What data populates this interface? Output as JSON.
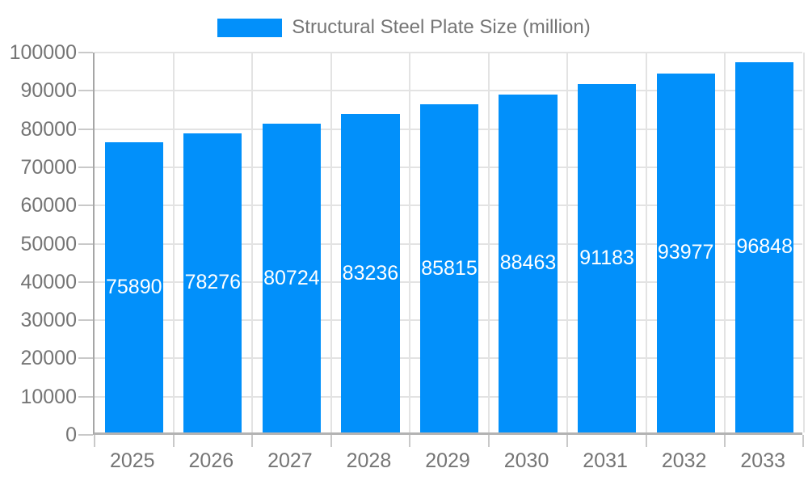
{
  "chart_data": {
    "type": "bar",
    "title": "Structural Steel Plate Size (million)",
    "legend_position": "top",
    "categories": [
      "2025",
      "2026",
      "2027",
      "2028",
      "2029",
      "2030",
      "2031",
      "2032",
      "2033"
    ],
    "values": [
      75890,
      78276,
      80724,
      83236,
      85815,
      88463,
      91183,
      93977,
      96848
    ],
    "xlabel": "",
    "ylabel": "",
    "ylim": [
      0,
      100000
    ],
    "y_ticks": [
      0,
      10000,
      20000,
      30000,
      40000,
      50000,
      60000,
      70000,
      80000,
      90000,
      100000
    ],
    "grid": true,
    "bar_color": "#0290fa",
    "bar_label_color": "#ffffff",
    "axis_text_color": "#757575",
    "gridline_color": "#e3e3e3"
  }
}
